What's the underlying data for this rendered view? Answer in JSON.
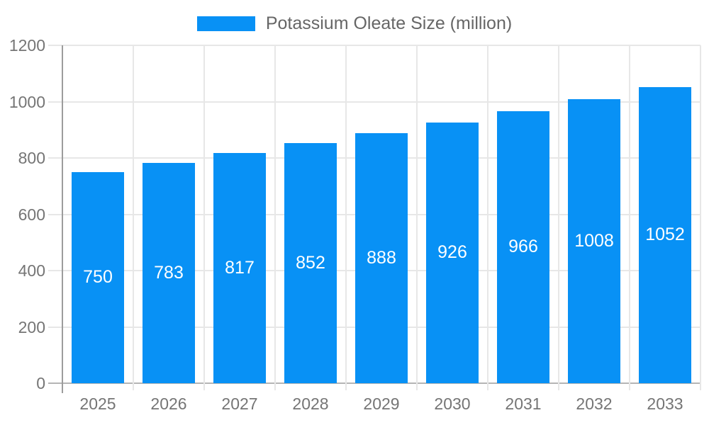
{
  "legend": {
    "label": "Potassium Oleate Size (million)"
  },
  "chart_data": {
    "type": "bar",
    "title": "",
    "series_name": "Potassium Oleate Size (million)",
    "categories": [
      "2025",
      "2026",
      "2027",
      "2028",
      "2029",
      "2030",
      "2031",
      "2032",
      "2033"
    ],
    "values": [
      750,
      783,
      817,
      852,
      888,
      926,
      966,
      1008,
      1052
    ],
    "xlabel": "",
    "ylabel": "",
    "ylim": [
      0,
      1200
    ],
    "yticks": [
      0,
      200,
      400,
      600,
      800,
      1000,
      1200
    ],
    "grid": true,
    "legend_position": "top-center",
    "value_labels": "inside-center"
  },
  "colors": {
    "bar": "#0891F5",
    "value_label": "#FFFFFF",
    "axis_text": "#757575",
    "legend_text": "#666666",
    "gridline": "#E7E7E7",
    "y_axis_line": "#9C9C9C",
    "x_axis_line": "#B5B5B5",
    "background": "#FFFFFF"
  }
}
